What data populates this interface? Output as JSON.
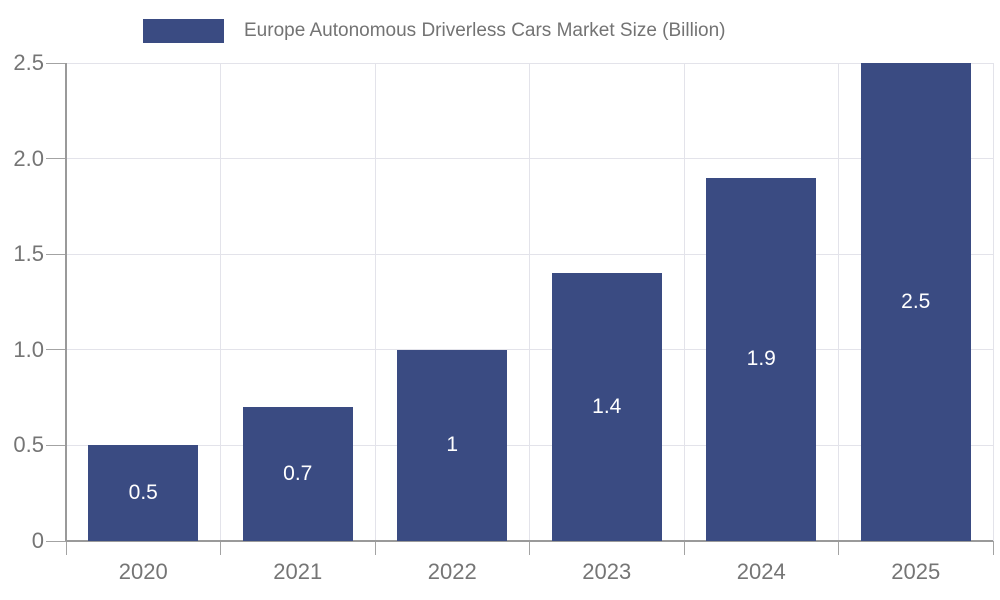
{
  "legend": {
    "label": "Europe Autonomous Driverless Cars Market Size (Billion)"
  },
  "colors": {
    "bar": "#3A4B82",
    "legend_text": "#737373",
    "axis_label": "#757575",
    "grid": "#E3E3EA",
    "axis_line": "#9A9A9A",
    "tick": "#A3A3A3",
    "value_label": "#FFFFFF"
  },
  "chart_data": {
    "type": "bar",
    "title": "",
    "legend_entries": [
      "Europe Autonomous Driverless Cars Market Size (Billion)"
    ],
    "legend_position": "top",
    "categories": [
      "2020",
      "2021",
      "2022",
      "2023",
      "2024",
      "2025"
    ],
    "values": [
      0.5,
      0.7,
      1,
      1.4,
      1.9,
      2.5
    ],
    "value_labels": [
      "0.5",
      "0.7",
      "1",
      "1.4",
      "1.9",
      "2.5"
    ],
    "xlabel": "",
    "ylabel": "",
    "ylim": [
      0,
      2.5
    ],
    "yticks": [
      0,
      0.5,
      1.0,
      1.5,
      2.0,
      2.5
    ],
    "ytick_labels": [
      "0",
      "0.5",
      "1.0",
      "1.5",
      "2.0",
      "2.5"
    ],
    "grid": true
  }
}
